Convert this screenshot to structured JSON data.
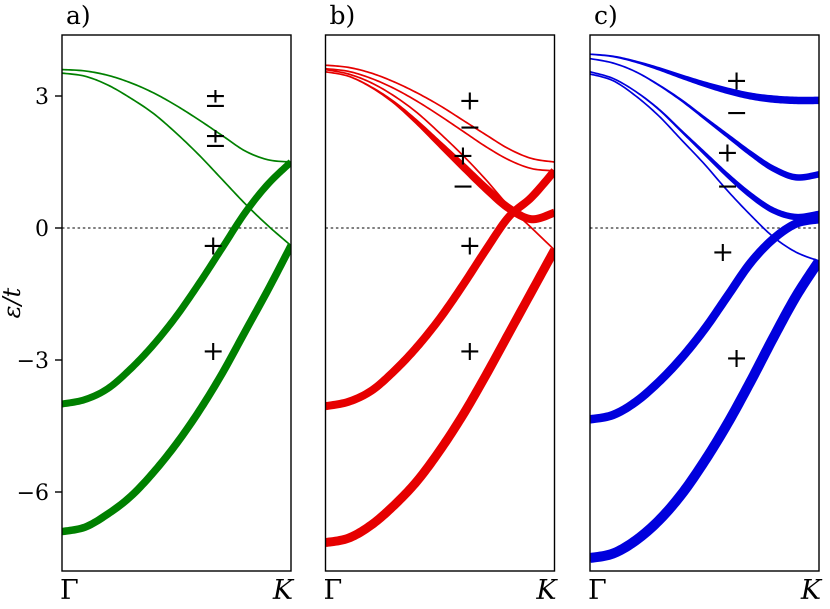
{
  "figure": {
    "background": "#ffffff",
    "axis_color": "#000000",
    "ylabel": "ε/t",
    "x_start_label": "Γ",
    "x_end_label": "K",
    "yticks": [
      3,
      0,
      -3,
      -6
    ],
    "zero_line": 0,
    "grid": false
  },
  "chart_data": [
    {
      "type": "line",
      "panel_label": "a)",
      "color": "#008000",
      "x_axis": {
        "start": "Γ",
        "end": "K",
        "range": [
          0,
          1
        ]
      },
      "y_axis": {
        "label": "ε/t",
        "ticks": [
          3,
          0,
          -3,
          -6
        ],
        "range": [
          -7.8,
          4.4
        ]
      },
      "x": [
        0,
        0.1,
        0.2,
        0.3,
        0.4,
        0.5,
        0.6,
        0.7,
        0.8,
        0.9,
        1
      ],
      "series": [
        {
          "name": "valence-1",
          "style": "thick",
          "width": 7.5,
          "eps": [
            -6.9,
            -6.8,
            -6.5,
            -6.1,
            -5.55,
            -4.9,
            -4.15,
            -3.3,
            -2.35,
            -1.4,
            -0.4
          ]
        },
        {
          "name": "valence-2",
          "style": "thick",
          "width": 7,
          "eps": [
            -4.0,
            -3.9,
            -3.65,
            -3.2,
            -2.65,
            -2.0,
            -1.25,
            -0.45,
            0.35,
            1.0,
            1.5
          ]
        },
        {
          "name": "conduction-lower",
          "style": "thin",
          "width": 1.7,
          "eps": [
            3.52,
            3.45,
            3.25,
            2.95,
            2.6,
            2.15,
            1.65,
            1.1,
            0.55,
            0.05,
            -0.4
          ]
        },
        {
          "name": "conduction-upper",
          "style": "thin",
          "width": 1.7,
          "eps": [
            3.6,
            3.57,
            3.47,
            3.3,
            3.07,
            2.78,
            2.45,
            2.1,
            1.75,
            1.55,
            1.5
          ]
        }
      ],
      "annotations": [
        {
          "text": "±",
          "x": 0.67,
          "eps": 2.95
        },
        {
          "text": "±",
          "x": 0.67,
          "eps": 2.05
        },
        {
          "text": "+",
          "x": 0.66,
          "eps": -0.4
        },
        {
          "text": "+",
          "x": 0.66,
          "eps": -2.8
        }
      ]
    },
    {
      "type": "line",
      "panel_label": "b)",
      "color": "#e60000",
      "x_axis": {
        "start": "Γ",
        "end": "K",
        "range": [
          0,
          1
        ]
      },
      "y_axis": {
        "label": "ε/t",
        "ticks": [
          3,
          0,
          -3,
          -6
        ],
        "range": [
          -7.8,
          4.4
        ]
      },
      "x": [
        0,
        0.1,
        0.2,
        0.3,
        0.4,
        0.5,
        0.6,
        0.7,
        0.8,
        0.9,
        1
      ],
      "series": [
        {
          "name": "valence-1",
          "style": "thick",
          "width": 9,
          "eps": [
            -7.15,
            -7.05,
            -6.75,
            -6.3,
            -5.75,
            -5.05,
            -4.25,
            -3.35,
            -2.4,
            -1.45,
            -0.5
          ]
        },
        {
          "name": "valence-2",
          "style": "thick",
          "width": 8,
          "eps": [
            -4.05,
            -3.95,
            -3.7,
            -3.25,
            -2.7,
            -2.05,
            -1.3,
            -0.5,
            0.25,
            0.7,
            1.3
          ]
        },
        {
          "name": "conduction-lower-minus",
          "style": "thin-to-thick",
          "width": [
            1.7,
            1.7,
            2,
            3,
            4.5,
            6,
            7.5,
            8,
            8,
            8,
            8
          ],
          "eps": [
            3.55,
            3.45,
            3.2,
            2.85,
            2.4,
            1.9,
            1.4,
            0.9,
            0.45,
            0.2,
            0.35
          ]
        },
        {
          "name": "conduction-lower-plus",
          "style": "thin",
          "width": 1.7,
          "eps": [
            3.6,
            3.5,
            3.3,
            3.0,
            2.62,
            2.15,
            1.65,
            1.1,
            0.5,
            0.0,
            -0.5
          ]
        },
        {
          "name": "conduction-upper-plus",
          "style": "thin",
          "width": 1.7,
          "eps": [
            3.7,
            3.65,
            3.52,
            3.32,
            3.07,
            2.78,
            2.45,
            2.12,
            1.8,
            1.58,
            1.5
          ]
        },
        {
          "name": "conduction-upper-minus",
          "style": "thin",
          "width": 1.7,
          "eps": [
            3.62,
            3.56,
            3.4,
            3.17,
            2.88,
            2.55,
            2.2,
            1.85,
            1.55,
            1.35,
            1.3
          ]
        }
      ],
      "annotations": [
        {
          "text": "+",
          "x": 0.63,
          "eps": 2.9
        },
        {
          "text": "−",
          "x": 0.63,
          "eps": 2.3
        },
        {
          "text": "+",
          "x": 0.6,
          "eps": 1.65
        },
        {
          "text": "−",
          "x": 0.6,
          "eps": 0.95
        },
        {
          "text": "+",
          "x": 0.63,
          "eps": -0.4
        },
        {
          "text": "+",
          "x": 0.63,
          "eps": -2.8
        }
      ]
    },
    {
      "type": "line",
      "panel_label": "c)",
      "color": "#0000dd",
      "x_axis": {
        "start": "Γ",
        "end": "K",
        "range": [
          0,
          1
        ]
      },
      "y_axis": {
        "label": "ε/t",
        "ticks": [
          3,
          0,
          -3,
          -6
        ],
        "range": [
          -7.8,
          4.4
        ]
      },
      "x": [
        0,
        0.1,
        0.2,
        0.3,
        0.4,
        0.5,
        0.6,
        0.7,
        0.8,
        0.9,
        1
      ],
      "series": [
        {
          "name": "valence-1",
          "style": "thick",
          "width": 10,
          "eps": [
            -7.5,
            -7.4,
            -7.1,
            -6.65,
            -6.05,
            -5.3,
            -4.45,
            -3.5,
            -2.5,
            -1.55,
            -0.75
          ]
        },
        {
          "name": "valence-2",
          "style": "thick",
          "width": 8.5,
          "eps": [
            -4.35,
            -4.25,
            -3.95,
            -3.5,
            -2.95,
            -2.3,
            -1.55,
            -0.8,
            -0.25,
            0.1,
            0.2
          ]
        },
        {
          "name": "conduction-lower-minus",
          "style": "thin-to-thick",
          "width": [
            1.7,
            1.7,
            1.7,
            2,
            2.5,
            3.5,
            4.5,
            5.5,
            6,
            6.5,
            6.5
          ],
          "eps": [
            3.55,
            3.4,
            3.1,
            2.7,
            2.2,
            1.7,
            1.2,
            0.75,
            0.4,
            0.25,
            0.32
          ]
        },
        {
          "name": "conduction-lower-plus",
          "style": "thin",
          "width": 1.7,
          "eps": [
            3.5,
            3.35,
            3.0,
            2.55,
            2.0,
            1.45,
            0.85,
            0.3,
            -0.2,
            -0.55,
            -0.75
          ]
        },
        {
          "name": "conduction-upper-plus",
          "style": "thin-to-thick",
          "width": [
            1.7,
            2,
            2.5,
            3.5,
            4.5,
            5.5,
            6.5,
            7,
            7.5,
            7.5,
            7.5
          ],
          "eps": [
            3.95,
            3.9,
            3.78,
            3.62,
            3.44,
            3.27,
            3.12,
            3.0,
            2.93,
            2.9,
            2.9
          ]
        },
        {
          "name": "conduction-upper-minus",
          "style": "thin-to-thick",
          "width": [
            1.7,
            1.7,
            1.7,
            2,
            2.5,
            3,
            4,
            5,
            6,
            6.5,
            6.5
          ],
          "eps": [
            3.85,
            3.75,
            3.55,
            3.25,
            2.9,
            2.5,
            2.1,
            1.7,
            1.35,
            1.15,
            1.22
          ]
        }
      ],
      "annotations": [
        {
          "text": "+",
          "x": 0.64,
          "eps": 3.35
        },
        {
          "text": "−",
          "x": 0.64,
          "eps": 2.62
        },
        {
          "text": "+",
          "x": 0.6,
          "eps": 1.72
        },
        {
          "text": "−",
          "x": 0.6,
          "eps": 0.95
        },
        {
          "text": "+",
          "x": 0.58,
          "eps": -0.55
        },
        {
          "text": "+",
          "x": 0.64,
          "eps": -2.95
        }
      ]
    }
  ]
}
